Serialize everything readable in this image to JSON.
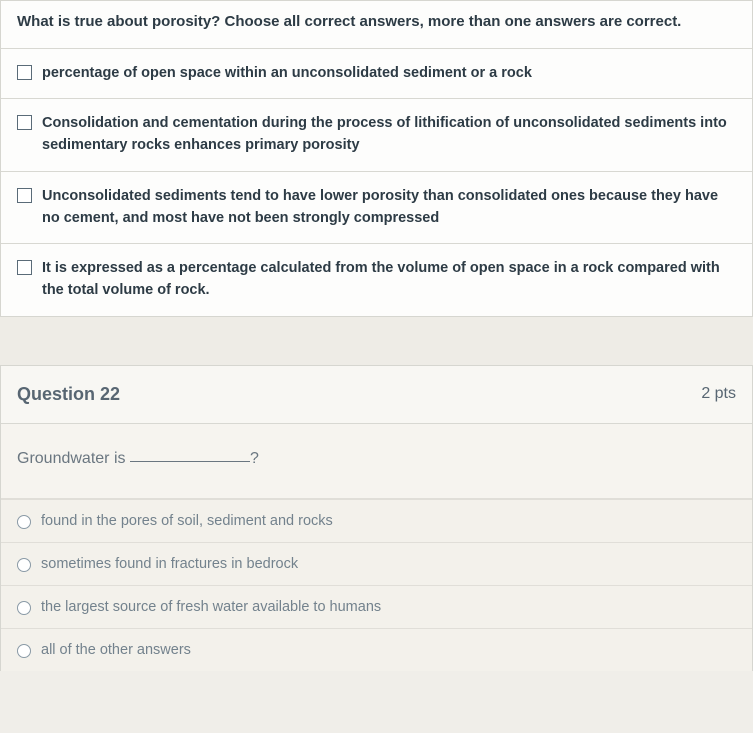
{
  "question21": {
    "prompt": "What is true about porosity? Choose all correct answers, more than one answers are correct.",
    "answers": [
      "percentage of open space within an unconsolidated sediment or a rock",
      "Consolidation and cementation during the process of lithification of unconsolidated sediments into sedimentary rocks enhances primary porosity",
      "Unconsolidated sediments tend to have lower porosity than consolidated ones because they have no cement, and most have not been strongly compressed",
      "It is expressed as a percentage calculated from the volume of open space in a rock compared with the total volume of rock."
    ]
  },
  "question22": {
    "header_title": "Question 22",
    "points": "2 pts",
    "prompt_prefix": "Groundwater is ",
    "prompt_suffix": "?",
    "answers": [
      "found in the pores of soil, sediment and rocks",
      "sometimes found in fractures in bedrock",
      "the largest source of fresh water available to humans",
      "all of the other answers"
    ]
  },
  "colors": {
    "page_bg": "#f0eee9",
    "block_bg": "#fdfdfc",
    "border": "#d6d6d0",
    "text_primary": "#2d3b45",
    "text_muted": "#6a7680",
    "header_bg": "#f8f7f3",
    "q22_body_bg": "#f6f4ef",
    "q22_answer_bg": "#f3f1eb"
  }
}
